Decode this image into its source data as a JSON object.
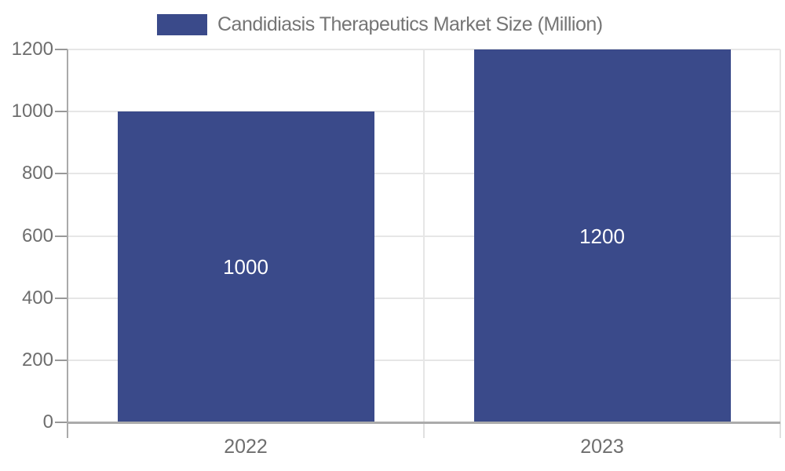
{
  "legend": {
    "label": "Candidiasis Therapeutics Market Size (Million)"
  },
  "colors": {
    "bar": "#3A4A8A",
    "grid": "#e6e6e6",
    "axis": "#aaaaaa",
    "tick_label_text": "#6e6e6e",
    "legend_text": "#757575",
    "value_label_text": "#ffffff",
    "background": "#ffffff"
  },
  "chart_data": {
    "type": "bar",
    "title": "Candidiasis Therapeutics Market Size (Million)",
    "categories": [
      "2022",
      "2023"
    ],
    "series": [
      {
        "name": "Candidiasis Therapeutics Market Size (Million)",
        "values": [
          1000,
          1200
        ]
      }
    ],
    "value_labels": [
      "1000",
      "1200"
    ],
    "yticks": [
      0,
      200,
      400,
      600,
      800,
      1000,
      1200
    ],
    "ylim": [
      0,
      1200
    ],
    "xlabel": "",
    "ylabel": "",
    "grid": true,
    "legend_position": "top"
  }
}
